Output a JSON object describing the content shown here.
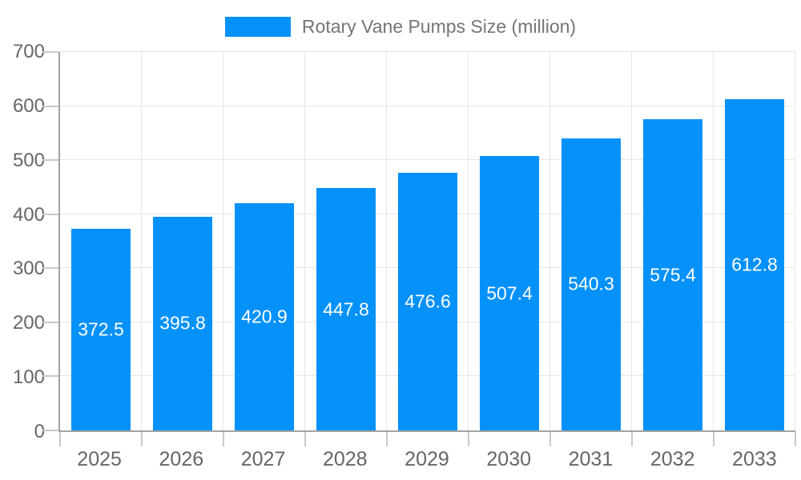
{
  "legend": {
    "label": "Rotary Vane Pumps Size (million)"
  },
  "chart_data": {
    "type": "bar",
    "title": "",
    "series_name": "Rotary Vane Pumps Size (million)",
    "categories": [
      "2025",
      "2026",
      "2027",
      "2028",
      "2029",
      "2030",
      "2031",
      "2032",
      "2033"
    ],
    "values": [
      372.5,
      395.8,
      420.9,
      447.8,
      476.6,
      507.4,
      540.3,
      575.4,
      612.8
    ],
    "value_labels": [
      "372.5",
      "395.8",
      "420.9",
      "447.8",
      "476.6",
      "507.4",
      "540.3",
      "575.4",
      "612.8"
    ],
    "xlabel": "",
    "ylabel": "",
    "ylim": [
      0,
      700
    ],
    "ytick_step": 100,
    "ytick_labels": [
      "0",
      "100",
      "200",
      "300",
      "400",
      "500",
      "600",
      "700"
    ],
    "grid": true,
    "legend_position": "top-center",
    "colors": {
      "bar": "#0591fa",
      "grid": "#e6e6e6",
      "axis": "#a3a3a3",
      "tick": "#c9c9c9",
      "axis_label": "#666666",
      "legend_label": "#757575",
      "value_label": "#ffffff",
      "background": "#ffffff"
    }
  }
}
